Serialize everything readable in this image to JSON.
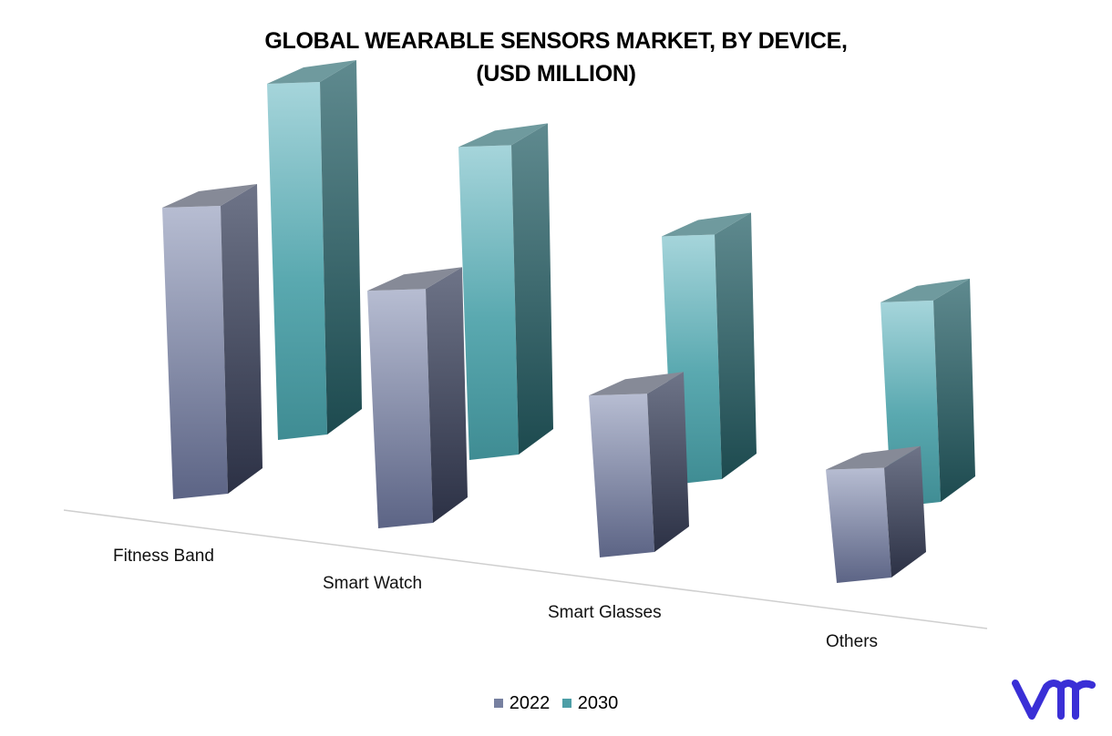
{
  "title_line1": "GLOBAL WEARABLE SENSORS MARKET, BY DEVICE,",
  "title_line2": "(USD MILLION)",
  "colors": {
    "series_2022": "#7780a0",
    "series_2030": "#4d9ea6",
    "logo": "#3a2fd6"
  },
  "logo_text": "vm",
  "chart_data": {
    "type": "bar",
    "style": "3d-clustered-column",
    "categories": [
      "Fitness Band",
      "Smart Watch",
      "Smart Glasses",
      "Others"
    ],
    "series": [
      {
        "name": "2022",
        "values": [
          270,
          220,
          150,
          105
        ]
      },
      {
        "name": "2030",
        "values": [
          330,
          290,
          230,
          190
        ]
      }
    ],
    "legend_position": "bottom",
    "grid": false,
    "ylim": [
      0,
      350
    ]
  }
}
